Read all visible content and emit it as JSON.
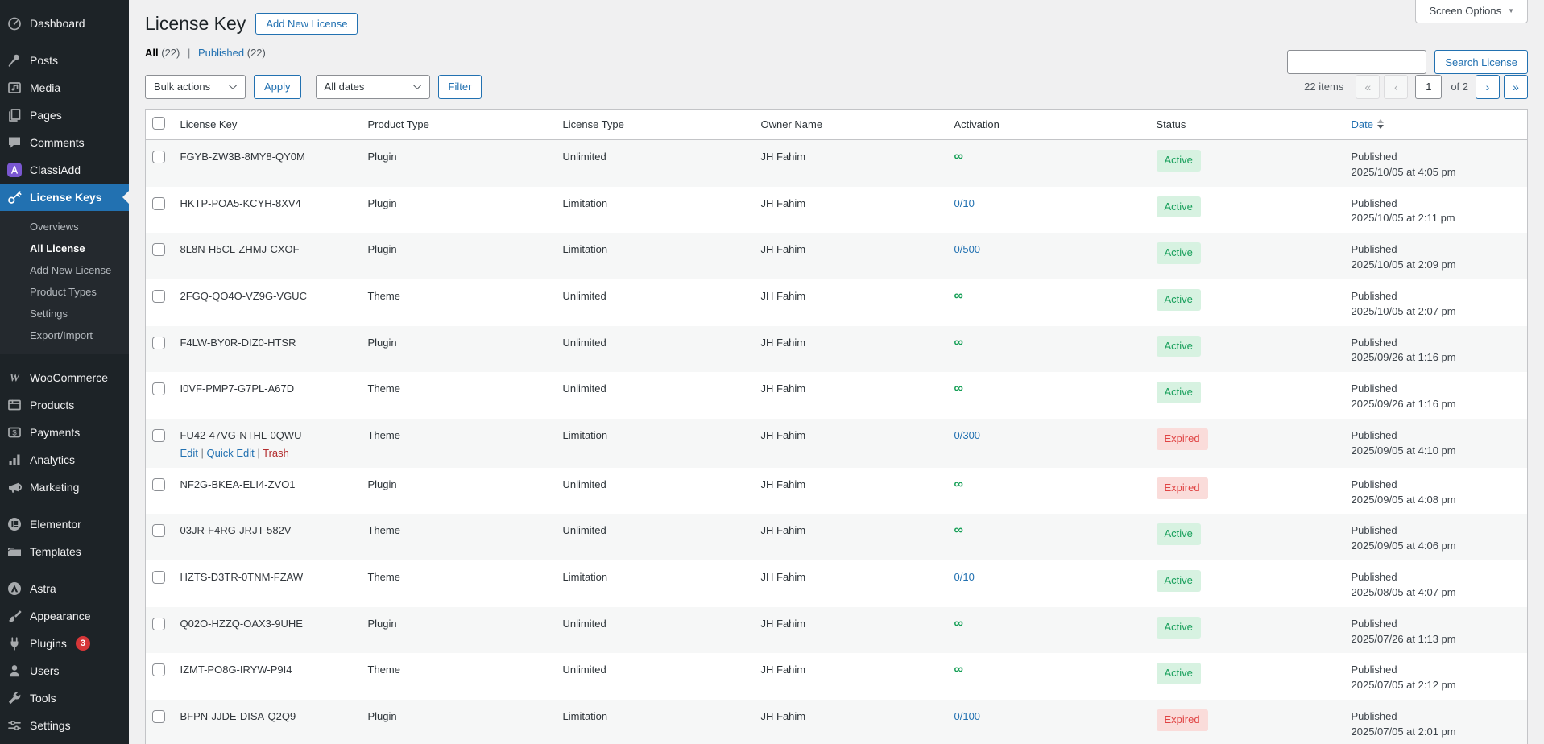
{
  "screen_options": {
    "label": "Screen Options"
  },
  "page": {
    "title": "License Key",
    "add_new_label": "Add New License"
  },
  "views": [
    {
      "id": "all",
      "label": "All",
      "count": "(22)",
      "current": true
    },
    {
      "id": "published",
      "label": "Published",
      "count": "(22)",
      "current": false
    }
  ],
  "search": {
    "value": "",
    "button_label": "Search License"
  },
  "tablenav": {
    "bulk_actions_label": "Bulk actions",
    "apply_label": "Apply",
    "dates_filter_label": "All dates",
    "filter_label": "Filter",
    "items_count": "22 items",
    "pagination": {
      "first": "«",
      "prev": "‹",
      "current_page": "1",
      "of_label": "of 2",
      "next": "›",
      "last": "»"
    }
  },
  "table": {
    "columns": [
      "License Key",
      "Product Type",
      "License Type",
      "Owner Name",
      "Activation",
      "Status",
      "Date"
    ],
    "sorted_column": "Date",
    "date_prefix": "Published",
    "rows": [
      {
        "key": "FGYB-ZW3B-8MY8-QY0M",
        "product_type": "Plugin",
        "license_type": "Unlimited",
        "owner": "JH Fahim",
        "activation": "∞",
        "activation_kind": "infinite",
        "status": "Active",
        "date": "2025/10/05 at 4:05 pm"
      },
      {
        "key": "HKTP-POA5-KCYH-8XV4",
        "product_type": "Plugin",
        "license_type": "Limitation",
        "owner": "JH Fahim",
        "activation": "0/10",
        "activation_kind": "link",
        "status": "Active",
        "date": "2025/10/05 at 2:11 pm"
      },
      {
        "key": "8L8N-H5CL-ZHMJ-CXOF",
        "product_type": "Plugin",
        "license_type": "Limitation",
        "owner": "JH Fahim",
        "activation": "0/500",
        "activation_kind": "link",
        "status": "Active",
        "date": "2025/10/05 at 2:09 pm"
      },
      {
        "key": "2FGQ-QO4O-VZ9G-VGUC",
        "product_type": "Theme",
        "license_type": "Unlimited",
        "owner": "JH Fahim",
        "activation": "∞",
        "activation_kind": "infinite",
        "status": "Active",
        "date": "2025/10/05 at 2:07 pm"
      },
      {
        "key": "F4LW-BY0R-DIZ0-HTSR",
        "product_type": "Plugin",
        "license_type": "Unlimited",
        "owner": "JH Fahim",
        "activation": "∞",
        "activation_kind": "infinite",
        "status": "Active",
        "date": "2025/09/26 at 1:16 pm"
      },
      {
        "key": "I0VF-PMP7-G7PL-A67D",
        "product_type": "Theme",
        "license_type": "Unlimited",
        "owner": "JH Fahim",
        "activation": "∞",
        "activation_kind": "infinite",
        "status": "Active",
        "date": "2025/09/26 at 1:16 pm"
      },
      {
        "key": "FU42-47VG-NTHL-0QWU",
        "product_type": "Theme",
        "license_type": "Limitation",
        "owner": "JH Fahim",
        "activation": "0/300",
        "activation_kind": "link",
        "status": "Expired",
        "date": "2025/09/05 at 4:10 pm",
        "actions": [
          {
            "label": "Edit",
            "kind": "edit"
          },
          {
            "label": "Quick Edit",
            "kind": "quick-edit"
          },
          {
            "label": "Trash",
            "kind": "trash"
          }
        ]
      },
      {
        "key": "NF2G-BKEA-ELI4-ZVO1",
        "product_type": "Plugin",
        "license_type": "Unlimited",
        "owner": "JH Fahim",
        "activation": "∞",
        "activation_kind": "infinite",
        "status": "Expired",
        "date": "2025/09/05 at 4:08 pm"
      },
      {
        "key": "03JR-F4RG-JRJT-582V",
        "product_type": "Theme",
        "license_type": "Unlimited",
        "owner": "JH Fahim",
        "activation": "∞",
        "activation_kind": "infinite",
        "status": "Active",
        "date": "2025/09/05 at 4:06 pm"
      },
      {
        "key": "HZTS-D3TR-0TNM-FZAW",
        "product_type": "Theme",
        "license_type": "Limitation",
        "owner": "JH Fahim",
        "activation": "0/10",
        "activation_kind": "link",
        "status": "Active",
        "date": "2025/08/05 at 4:07 pm"
      },
      {
        "key": "Q02O-HZZQ-OAX3-9UHE",
        "product_type": "Plugin",
        "license_type": "Unlimited",
        "owner": "JH Fahim",
        "activation": "∞",
        "activation_kind": "infinite",
        "status": "Active",
        "date": "2025/07/26 at 1:13 pm"
      },
      {
        "key": "IZMT-PO8G-IRYW-P9I4",
        "product_type": "Theme",
        "license_type": "Unlimited",
        "owner": "JH Fahim",
        "activation": "∞",
        "activation_kind": "infinite",
        "status": "Active",
        "date": "2025/07/05 at 2:12 pm"
      },
      {
        "key": "BFPN-JJDE-DISA-Q2Q9",
        "product_type": "Plugin",
        "license_type": "Limitation",
        "owner": "JH Fahim",
        "activation": "0/100",
        "activation_kind": "link",
        "status": "Expired",
        "date": "2025/07/05 at 2:01 pm"
      }
    ]
  },
  "sidebar": {
    "sections": [
      {
        "items": [
          {
            "id": "dashboard",
            "label": "Dashboard",
            "icon": "dashboard-icon"
          }
        ]
      },
      {
        "items": [
          {
            "id": "posts",
            "label": "Posts",
            "icon": "pin-icon"
          },
          {
            "id": "media",
            "label": "Media",
            "icon": "media-icon"
          },
          {
            "id": "pages",
            "label": "Pages",
            "icon": "pages-icon"
          },
          {
            "id": "comments",
            "label": "Comments",
            "icon": "comment-bubble-icon"
          },
          {
            "id": "classiadd",
            "label": "ClassiAdd",
            "icon": "classiadd-logo-icon"
          },
          {
            "id": "license-keys",
            "label": "License Keys",
            "icon": "key-icon",
            "active": true,
            "submenu": [
              {
                "id": "overviews",
                "label": "Overviews",
                "current": false
              },
              {
                "id": "all-license",
                "label": "All License",
                "current": true
              },
              {
                "id": "add-new-license",
                "label": "Add New License",
                "current": false
              },
              {
                "id": "product-types",
                "label": "Product Types",
                "current": false
              },
              {
                "id": "settings",
                "label": "Settings",
                "current": false
              },
              {
                "id": "export-import",
                "label": "Export/Import",
                "current": false
              }
            ]
          }
        ]
      },
      {
        "items": [
          {
            "id": "woocommerce",
            "label": "WooCommerce",
            "icon": "woocommerce-icon"
          },
          {
            "id": "products",
            "label": "Products",
            "icon": "box-icon"
          },
          {
            "id": "payments",
            "label": "Payments",
            "icon": "dollar-card-icon"
          },
          {
            "id": "analytics",
            "label": "Analytics",
            "icon": "bar-chart-icon"
          },
          {
            "id": "marketing",
            "label": "Marketing",
            "icon": "megaphone-icon"
          }
        ]
      },
      {
        "items": [
          {
            "id": "elementor",
            "label": "Elementor",
            "icon": "elementor-icon"
          },
          {
            "id": "templates",
            "label": "Templates",
            "icon": "folder-icon"
          }
        ]
      },
      {
        "items": [
          {
            "id": "astra",
            "label": "Astra",
            "icon": "astra-icon"
          },
          {
            "id": "appearance",
            "label": "Appearance",
            "icon": "brush-icon"
          },
          {
            "id": "plugins",
            "label": "Plugins",
            "icon": "plug-icon",
            "badge": "3"
          },
          {
            "id": "users",
            "label": "Users",
            "icon": "user-icon"
          },
          {
            "id": "tools",
            "label": "Tools",
            "icon": "wrench-icon"
          },
          {
            "id": "settings-wp",
            "label": "Settings",
            "icon": "sliders-icon"
          }
        ]
      }
    ]
  },
  "colors": {
    "accent_blue": "#2271b1",
    "sidebar_bg": "#1d2327",
    "content_bg": "#f0f0f1",
    "active_badge_bg": "#d7f2e1",
    "active_badge_text": "#19a05c",
    "expired_badge_bg": "#fadcda",
    "expired_badge_text": "#e04444",
    "infinity_green": "#18a058",
    "trash_red": "#b32d2e",
    "update_badge_red": "#d63638"
  }
}
